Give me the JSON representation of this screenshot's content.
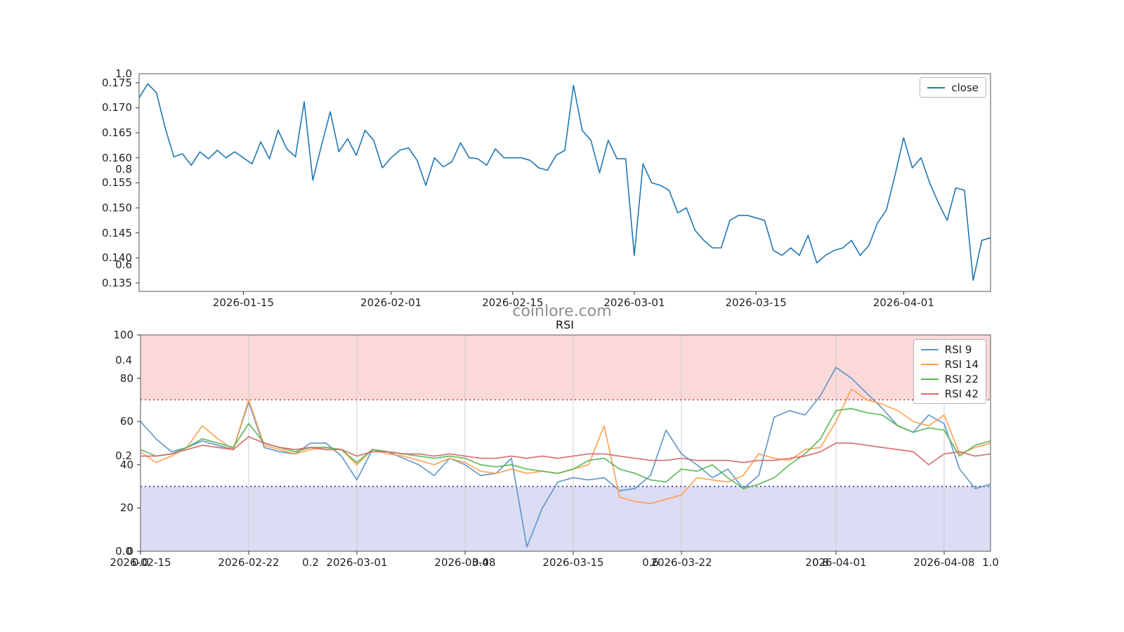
{
  "watermark": "coinlore.com",
  "colors": {
    "grid": "#cccccc",
    "spine": "#555555",
    "tick": "#333333",
    "watermark": "#8f8f8f"
  },
  "stray_axis_labels": {
    "left": [
      "1.0",
      "0.8",
      "0.6",
      "0.4",
      "0.2",
      "0.0"
    ],
    "bottom": [
      "0.0",
      "0.2",
      "0.4",
      "0.6",
      "0.8",
      "1.0"
    ]
  },
  "chart_data": [
    {
      "id": "price",
      "type": "line",
      "title": "",
      "legend": [
        "close"
      ],
      "legend_position": "upper right",
      "grid": false,
      "frequency": "daily",
      "ylim": [
        0.1333,
        0.1768
      ],
      "yticks": [
        0.135,
        0.14,
        0.145,
        0.15,
        0.155,
        0.16,
        0.165,
        0.17,
        0.175
      ],
      "xticks": [
        {
          "label": "2026-01-15",
          "i": 12
        },
        {
          "label": "2026-02-01",
          "i": 29
        },
        {
          "label": "2026-02-15",
          "i": 43
        },
        {
          "label": "2026-03-01",
          "i": 57
        },
        {
          "label": "2026-03-15",
          "i": 71
        },
        {
          "label": "2026-04-01",
          "i": 88
        }
      ],
      "dates": [
        "2026-01-03",
        "2026-01-04",
        "2026-01-05",
        "2026-01-06",
        "2026-01-07",
        "2026-01-08",
        "2026-01-09",
        "2026-01-10",
        "2026-01-11",
        "2026-01-12",
        "2026-01-13",
        "2026-01-14",
        "2026-01-15",
        "2026-01-16",
        "2026-01-17",
        "2026-01-18",
        "2026-01-19",
        "2026-01-20",
        "2026-01-21",
        "2026-01-22",
        "2026-01-23",
        "2026-01-24",
        "2026-01-25",
        "2026-01-26",
        "2026-01-27",
        "2026-01-28",
        "2026-01-29",
        "2026-01-30",
        "2026-01-31",
        "2026-02-01",
        "2026-02-02",
        "2026-02-03",
        "2026-02-04",
        "2026-02-05",
        "2026-02-06",
        "2026-02-07",
        "2026-02-08",
        "2026-02-09",
        "2026-02-10",
        "2026-02-11",
        "2026-02-12",
        "2026-02-13",
        "2026-02-14",
        "2026-02-15",
        "2026-02-16",
        "2026-02-17",
        "2026-02-18",
        "2026-02-19",
        "2026-02-20",
        "2026-02-21",
        "2026-02-22",
        "2026-02-23",
        "2026-02-24",
        "2026-02-25",
        "2026-02-26",
        "2026-02-27",
        "2026-02-28",
        "2026-03-01",
        "2026-03-02",
        "2026-03-03",
        "2026-03-04",
        "2026-03-05",
        "2026-03-06",
        "2026-03-07",
        "2026-03-08",
        "2026-03-09",
        "2026-03-10",
        "2026-03-11",
        "2026-03-12",
        "2026-03-13",
        "2026-03-14",
        "2026-03-15",
        "2026-03-16",
        "2026-03-17",
        "2026-03-18",
        "2026-03-19",
        "2026-03-20",
        "2026-03-21",
        "2026-03-22",
        "2026-03-23",
        "2026-03-24",
        "2026-03-25",
        "2026-03-26",
        "2026-03-27",
        "2026-03-28",
        "2026-03-29",
        "2026-03-30",
        "2026-03-31",
        "2026-04-01",
        "2026-04-02",
        "2026-04-03",
        "2026-04-04",
        "2026-04-05",
        "2026-04-06",
        "2026-04-07",
        "2026-04-08",
        "2026-04-09",
        "2026-04-10",
        "2026-04-11"
      ],
      "series": [
        {
          "name": "close",
          "color": "#1f77b4",
          "values": [
            0.172,
            0.1748,
            0.173,
            0.166,
            0.1602,
            0.1608,
            0.1585,
            0.1612,
            0.1598,
            0.1615,
            0.16,
            0.1612,
            0.16,
            0.1588,
            0.1632,
            0.1598,
            0.1655,
            0.1618,
            0.1602,
            0.1712,
            0.1555,
            0.1625,
            0.1692,
            0.1612,
            0.1638,
            0.1605,
            0.1655,
            0.1635,
            0.158,
            0.16,
            0.1615,
            0.162,
            0.1595,
            0.1545,
            0.16,
            0.1582,
            0.1592,
            0.163,
            0.16,
            0.1598,
            0.1585,
            0.1618,
            0.16,
            0.16,
            0.16,
            0.1595,
            0.158,
            0.1575,
            0.1605,
            0.1615,
            0.1745,
            0.1655,
            0.1635,
            0.157,
            0.1635,
            0.1598,
            0.1598,
            0.1405,
            0.1588,
            0.155,
            0.1545,
            0.1535,
            0.149,
            0.15,
            0.1455,
            0.1435,
            0.142,
            0.142,
            0.1475,
            0.1485,
            0.1485,
            0.148,
            0.1475,
            0.1415,
            0.1405,
            0.142,
            0.1405,
            0.1445,
            0.139,
            0.1405,
            0.1415,
            0.142,
            0.1435,
            0.1405,
            0.1425,
            0.147,
            0.1495,
            0.1565,
            0.164,
            0.158,
            0.16,
            0.155,
            0.151,
            0.1475,
            0.154,
            0.1535,
            0.1355,
            0.1435,
            0.144
          ]
        }
      ]
    },
    {
      "id": "rsi",
      "type": "line",
      "title": "RSI",
      "legend": [
        "RSI 9",
        "RSI 14",
        "RSI 22",
        "RSI 42"
      ],
      "legend_position": "upper right",
      "grid": "vertical",
      "frequency": "daily",
      "ylim": [
        0,
        100
      ],
      "yticks": [
        0,
        20,
        40,
        60,
        80,
        100
      ],
      "overbought_level": 70,
      "oversold_level": 30,
      "bands": {
        "overbought_fill": "#fbd9d9",
        "oversold_fill": "#dcdcf5",
        "overbought_line": "#c03a3a",
        "oversold_line": "#24249a"
      },
      "xticks": [
        {
          "label": "2026-02-15",
          "i": 0
        },
        {
          "label": "2026-02-22",
          "i": 7
        },
        {
          "label": "2026-03-01",
          "i": 14
        },
        {
          "label": "2026-03-08",
          "i": 21
        },
        {
          "label": "2026-03-15",
          "i": 28
        },
        {
          "label": "2026-03-22",
          "i": 35
        },
        {
          "label": "2026-04-01",
          "i": 45
        },
        {
          "label": "2026-04-08",
          "i": 52
        }
      ],
      "dates": [
        "2026-02-15",
        "2026-02-16",
        "2026-02-17",
        "2026-02-18",
        "2026-02-19",
        "2026-02-20",
        "2026-02-21",
        "2026-02-22",
        "2026-02-23",
        "2026-02-24",
        "2026-02-25",
        "2026-02-26",
        "2026-02-27",
        "2026-02-28",
        "2026-03-01",
        "2026-03-02",
        "2026-03-03",
        "2026-03-04",
        "2026-03-05",
        "2026-03-06",
        "2026-03-07",
        "2026-03-08",
        "2026-03-09",
        "2026-03-10",
        "2026-03-11",
        "2026-03-12",
        "2026-03-13",
        "2026-03-14",
        "2026-03-15",
        "2026-03-16",
        "2026-03-17",
        "2026-03-18",
        "2026-03-19",
        "2026-03-20",
        "2026-03-21",
        "2026-03-22",
        "2026-03-23",
        "2026-03-24",
        "2026-03-25",
        "2026-03-26",
        "2026-03-27",
        "2026-03-28",
        "2026-03-29",
        "2026-03-30",
        "2026-03-31",
        "2026-04-01",
        "2026-04-02",
        "2026-04-03",
        "2026-04-04",
        "2026-04-05",
        "2026-04-06",
        "2026-04-07",
        "2026-04-08",
        "2026-04-09",
        "2026-04-10",
        "2026-04-11"
      ],
      "series": [
        {
          "name": "RSI 9",
          "color": "#5c93c9",
          "values": [
            60,
            52,
            46,
            48,
            51,
            49,
            47,
            69,
            48,
            46,
            45,
            50,
            50,
            44,
            33,
            47,
            46,
            43,
            40,
            35,
            43,
            40,
            35,
            36,
            43,
            2,
            20,
            32,
            34,
            33,
            34,
            28,
            29,
            35,
            56,
            45,
            40,
            34,
            38,
            29,
            35,
            62,
            65,
            63,
            72,
            85,
            80,
            73,
            66,
            58,
            55,
            63,
            59,
            38,
            29,
            31
          ]
        },
        {
          "name": "RSI 14",
          "color": "#ffa04d",
          "values": [
            46,
            41,
            44,
            48,
            58,
            52,
            47,
            70,
            49,
            47,
            45,
            47,
            48,
            47,
            40,
            47,
            45,
            44,
            42,
            40,
            43,
            41,
            37,
            36,
            38,
            36,
            37,
            36,
            38,
            40,
            58,
            25,
            23,
            22,
            24,
            26,
            34,
            33,
            32,
            35,
            45,
            43,
            42,
            47,
            48,
            60,
            75,
            70,
            68,
            65,
            60,
            58,
            63,
            45,
            48,
            50
          ]
        },
        {
          "name": "RSI 22",
          "color": "#57b757",
          "values": [
            47,
            44,
            45,
            48,
            52,
            50,
            48,
            59,
            50,
            48,
            46,
            48,
            48,
            47,
            41,
            47,
            46,
            45,
            44,
            43,
            44,
            43,
            40,
            39,
            40,
            38,
            37,
            36,
            38,
            42,
            43,
            38,
            36,
            33,
            32,
            38,
            37,
            40,
            34,
            29,
            31,
            34,
            40,
            45,
            52,
            65,
            66,
            64,
            63,
            58,
            55,
            57,
            56,
            44,
            49,
            51
          ]
        },
        {
          "name": "RSI 42",
          "color": "#d46a6a",
          "values": [
            44,
            44,
            45,
            47,
            49,
            48,
            47,
            53,
            50,
            48,
            47,
            48,
            47,
            47,
            44,
            46,
            46,
            45,
            45,
            44,
            45,
            44,
            43,
            43,
            44,
            43,
            44,
            43,
            44,
            45,
            45,
            44,
            43,
            42,
            42,
            43,
            42,
            42,
            42,
            41,
            42,
            42,
            43,
            44,
            46,
            50,
            50,
            49,
            48,
            47,
            46,
            40,
            45,
            46,
            44,
            45
          ]
        }
      ]
    }
  ]
}
